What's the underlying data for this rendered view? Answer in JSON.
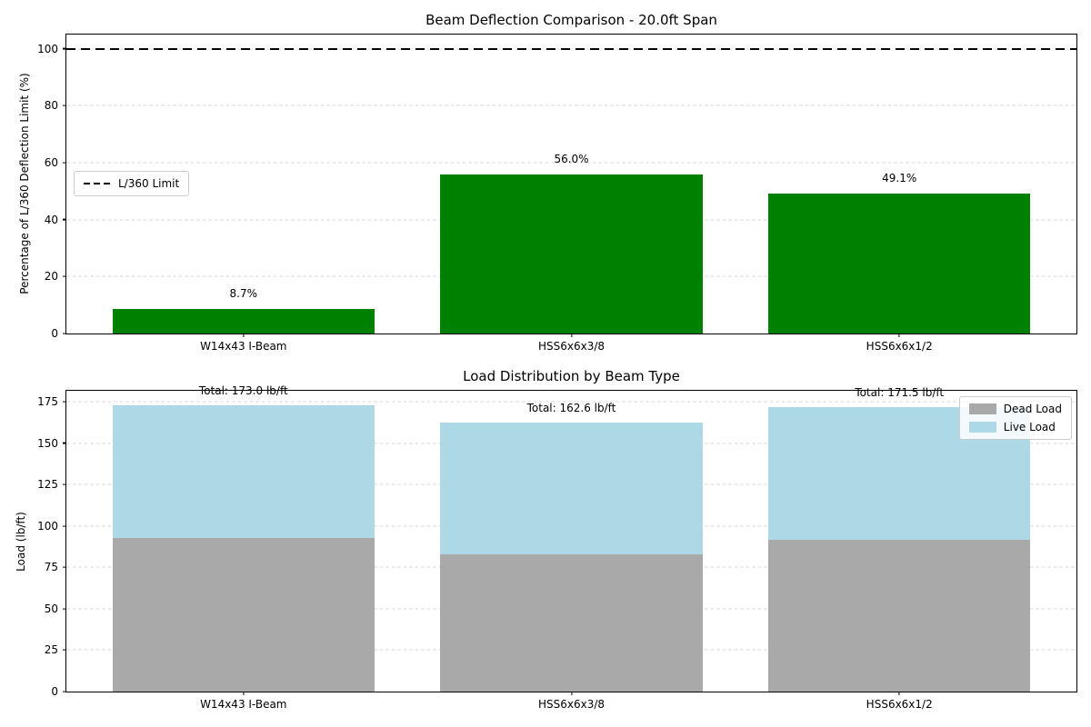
{
  "figure": {
    "background": "#ffffff"
  },
  "chart_data": [
    {
      "type": "bar",
      "title": "Beam Deflection Comparison - 20.0ft Span",
      "ylabel": "Percentage of L/360 Deflection Limit (%)",
      "categories": [
        "W14x43 I-Beam",
        "HSS6x6x3/8",
        "HSS6x6x1/2"
      ],
      "values": [
        8.7,
        56.0,
        49.1
      ],
      "bar_labels": [
        "8.7%",
        "56.0%",
        "49.1%"
      ],
      "bar_color": "#008000",
      "yticks": [
        0,
        20,
        40,
        60,
        80,
        100
      ],
      "ylim": [
        0,
        105
      ],
      "grid": "dashed-horizontal",
      "reference_line": {
        "value": 100,
        "label": "L/360 Limit",
        "style": "dashed",
        "color": "#000000"
      },
      "legend": {
        "position": "center left",
        "entries": [
          {
            "label": "L/360 Limit",
            "marker": "dashed-black-line"
          }
        ]
      }
    },
    {
      "type": "stacked-bar",
      "title": "Load Distribution by Beam Type",
      "ylabel": "Load (lb/ft)",
      "categories": [
        "W14x43 I-Beam",
        "HSS6x6x3/8",
        "HSS6x6x1/2"
      ],
      "series": [
        {
          "name": "Dead Load",
          "color": "#A9A9A9",
          "values": [
            93.0,
            82.6,
            91.5
          ]
        },
        {
          "name": "Live Load",
          "color": "#ADD8E6",
          "values": [
            80.0,
            80.0,
            80.0
          ]
        }
      ],
      "totals": [
        173.0,
        162.6,
        171.5
      ],
      "total_labels": [
        "Total: 173.0 lb/ft",
        "Total: 162.6 lb/ft",
        "Total: 171.5 lb/ft"
      ],
      "yticks": [
        0,
        25,
        50,
        75,
        100,
        125,
        150,
        175
      ],
      "ylim": [
        0,
        181.6
      ],
      "grid": "dashed-horizontal",
      "legend": {
        "position": "upper right",
        "entries": [
          {
            "label": "Dead Load",
            "color": "#A9A9A9"
          },
          {
            "label": "Live Load",
            "color": "#ADD8E6"
          }
        ]
      }
    }
  ]
}
